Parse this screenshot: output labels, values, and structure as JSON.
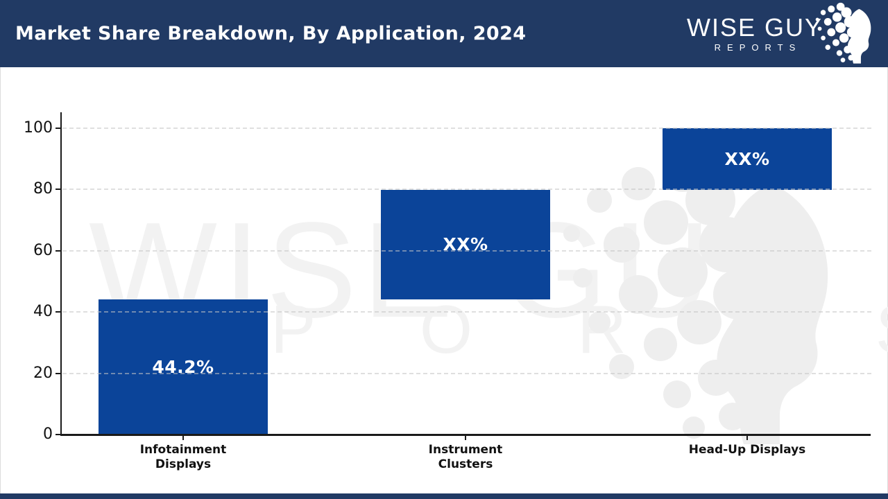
{
  "header": {
    "title": "Market Share Breakdown, By Application, 2024",
    "logo": {
      "line1": "WISE GUY",
      "line2": "REPORTS"
    }
  },
  "watermark": {
    "line1": "WISE GUY",
    "line2": "P O R T S"
  },
  "chart_data": {
    "type": "bar",
    "subtype": "floating-waterfall-bars",
    "title": "Market Share Breakdown, By Application, 2024",
    "categories": [
      "Infotainment\nDisplays",
      "Instrument\nClusters",
      "Head-Up Displays"
    ],
    "bars": [
      {
        "category": "Infotainment Displays",
        "start": 0,
        "end": 44.2,
        "label": "44.2%"
      },
      {
        "category": "Instrument Clusters",
        "start": 44.2,
        "end": 79.8,
        "label": "XX%"
      },
      {
        "category": "Head-Up Displays",
        "start": 79.8,
        "end": 100,
        "label": "XX%"
      }
    ],
    "ylim": [
      0,
      100
    ],
    "yticks": [
      0,
      20,
      40,
      60,
      80,
      100
    ],
    "grid": "horizontal dashed",
    "legend": "none",
    "xlabel": "",
    "ylabel": ""
  },
  "colors": {
    "header_bg": "#213a64",
    "footer_bg": "#213a64",
    "bar_fill": "#0b4499",
    "bar_label": "#ffffff",
    "axis": "#1a1a1a"
  }
}
